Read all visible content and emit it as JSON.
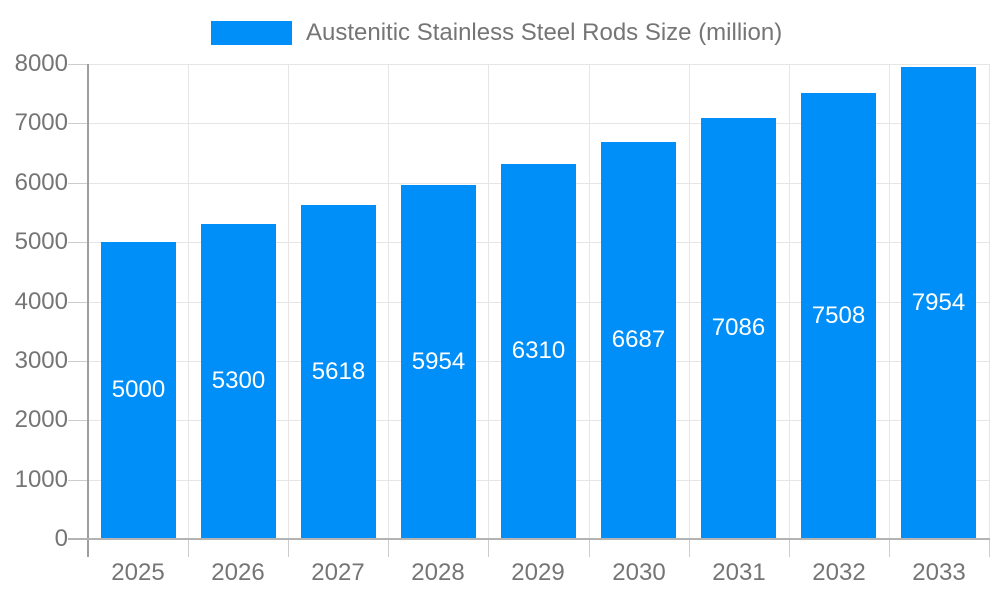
{
  "legend": {
    "label": "Austenitic Stainless Steel Rods Size (million)"
  },
  "colors": {
    "bar": "#008FF8",
    "axis_label": "#757575",
    "value_label": "#ffffff",
    "gridline": "#e6e6e6",
    "axis_line": "#9e9e9e",
    "baseline": "#b3b3b3"
  },
  "chart_data": {
    "type": "bar",
    "title": "Austenitic Stainless Steel Rods Size (million)",
    "categories": [
      "2025",
      "2026",
      "2027",
      "2028",
      "2029",
      "2030",
      "2031",
      "2032",
      "2033"
    ],
    "values": [
      5000,
      5300,
      5618,
      5954,
      6310,
      6687,
      7086,
      7508,
      7954
    ],
    "series": [
      {
        "name": "Austenitic Stainless Steel Rods Size (million)",
        "values": [
          5000,
          5300,
          5618,
          5954,
          6310,
          6687,
          7086,
          7508,
          7954
        ]
      }
    ],
    "xlabel": "",
    "ylabel": "",
    "ylim": [
      0,
      8000
    ],
    "yticks": [
      0,
      1000,
      2000,
      3000,
      4000,
      5000,
      6000,
      7000,
      8000
    ],
    "grid": true,
    "legend_position": "top",
    "value_labels": "centered-inside-bars"
  }
}
